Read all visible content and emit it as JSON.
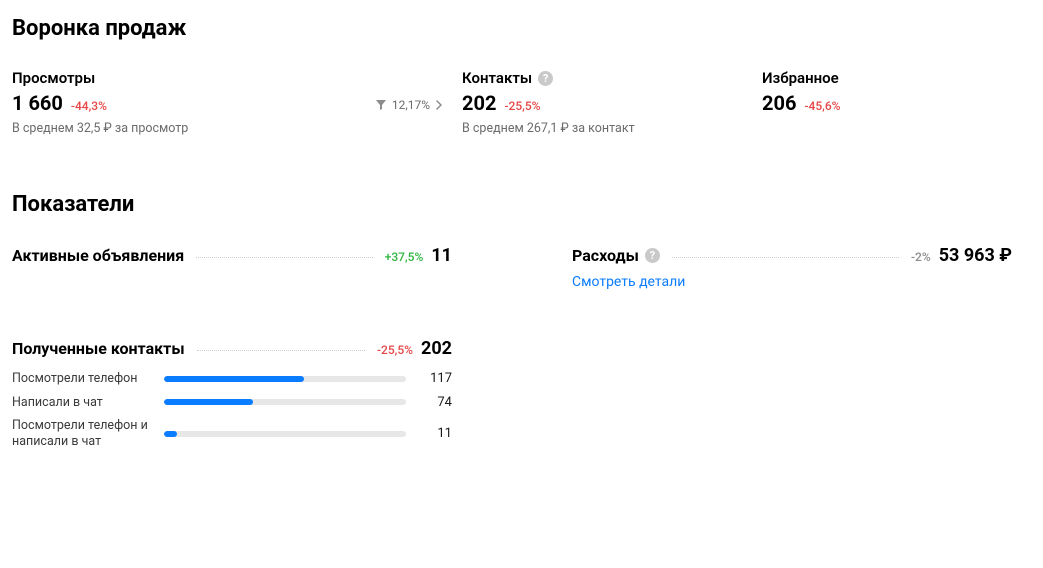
{
  "colors": {
    "negative": "#e64646",
    "positive": "#2db53f",
    "muted": "#8c8c8c",
    "link": "#0a7cff",
    "bar_fill": "#0a7cff",
    "bar_track": "#e7e7e7",
    "dots": "#cfcfcf",
    "background": "#ffffff",
    "text": "#000000",
    "subtext": "#6b6b6b"
  },
  "funnel": {
    "title": "Воронка продаж",
    "views": {
      "label": "Просмотры",
      "value": "1 660",
      "delta": "-44,3%",
      "conversion": "12,17%",
      "avg": "В среднем 32,5 ₽ за просмотр"
    },
    "contacts": {
      "label": "Контакты",
      "value": "202",
      "delta": "-25,5%",
      "avg": "В среднем 267,1 ₽ за контакт"
    },
    "favorites": {
      "label": "Избранное",
      "value": "206",
      "delta": "-45,6%"
    }
  },
  "metrics": {
    "title": "Показатели",
    "active": {
      "label": "Активные объявления",
      "delta": "+37,5%",
      "value": "11"
    },
    "spend": {
      "label": "Расходы",
      "delta": "-2%",
      "value": "53 963 ₽",
      "details_link": "Смотреть детали"
    }
  },
  "received_contacts": {
    "title": "Полученные контакты",
    "delta": "-25,5%",
    "total": "202",
    "bar_max": 202,
    "rows": [
      {
        "label": "Посмотрели телефон",
        "value": 117
      },
      {
        "label": "Написали в чат",
        "value": 74
      },
      {
        "label": "Посмотрели телефон и написали в чат",
        "value": 11
      }
    ]
  }
}
